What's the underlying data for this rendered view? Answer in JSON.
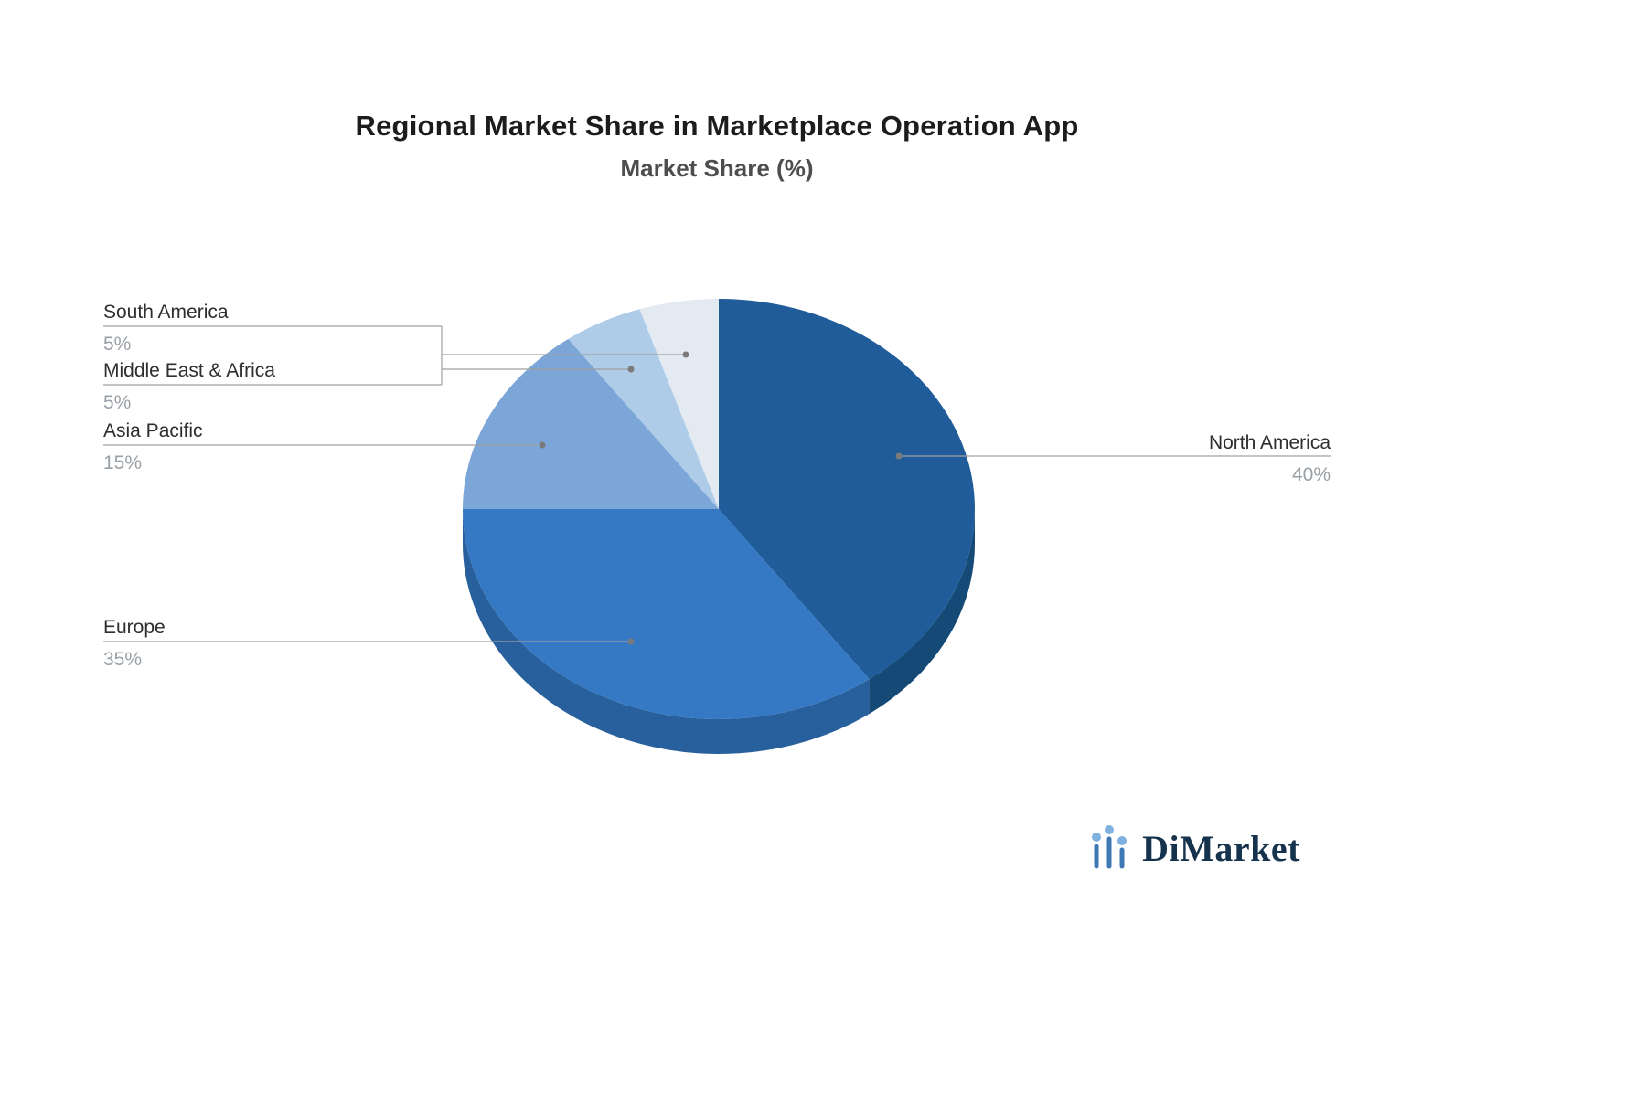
{
  "chart_data": {
    "type": "pie",
    "title": "Regional Market Share in Marketplace Operation App",
    "subtitle": "Market Share (%)",
    "unit": "%",
    "style": "3d-pie",
    "legend_position": "none",
    "label_style": "callout-lines",
    "start_angle_deg": 0,
    "direction": "clockwise",
    "series": [
      {
        "label": "North America",
        "value": 40,
        "display": "40%",
        "color": "#1F5C99",
        "side_color": "#154A77"
      },
      {
        "label": "Europe",
        "value": 35,
        "display": "35%",
        "color": "#3579C4",
        "side_color": "#28609D"
      },
      {
        "label": "Asia Pacific",
        "value": 15,
        "display": "15%",
        "color": "#7CA6D8",
        "side_color": "#5F86B3"
      },
      {
        "label": "Middle East & Africa",
        "value": 5,
        "display": "5%",
        "color": "#AECBE8",
        "side_color": "#8FABC8"
      },
      {
        "label": "South America",
        "value": 5,
        "display": "5%",
        "color": "#E4EAF1",
        "side_color": "#C2CDD9"
      }
    ],
    "connector_color": "#a0a0a0",
    "dot_color": "#7a7a7a"
  },
  "branding": {
    "logo_text": "DiMarket",
    "logo_icon": "bar-dots-chart-icon",
    "logo_text_color": "#16334e",
    "logo_icon_color": "#3E79B6"
  }
}
